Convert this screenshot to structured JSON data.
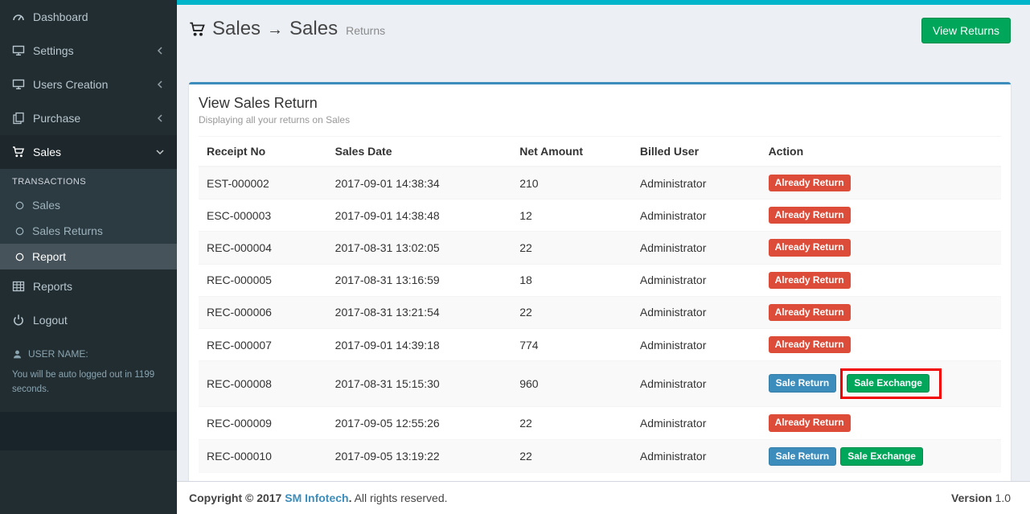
{
  "colors": {
    "topbar_accent": "#00b5c9",
    "primary_blue": "#3c8dbc",
    "success_green": "#00a65a",
    "danger_red": "#dd4b39",
    "sidebar_bg": "#222d32",
    "annotation_red": "#f20000"
  },
  "sidebar": {
    "items": [
      {
        "label": "Dashboard"
      },
      {
        "label": "Settings"
      },
      {
        "label": "Users Creation"
      },
      {
        "label": "Purchase"
      },
      {
        "label": "Sales"
      }
    ],
    "transactions_header": "TRANSACTIONS",
    "submenu": [
      {
        "label": "Sales"
      },
      {
        "label": "Sales Returns"
      },
      {
        "label": "Report"
      }
    ],
    "bottom_items": [
      {
        "label": "Reports"
      },
      {
        "label": "Logout"
      }
    ],
    "user_label": "USER NAME:",
    "auto_logout_text": "You will be auto logged out in 1199 seconds."
  },
  "header": {
    "title_primary": "Sales",
    "arrow": "→",
    "title_secondary": "Sales",
    "title_sub": "Returns",
    "view_returns_label": "View Returns"
  },
  "card": {
    "title": "View Sales Return",
    "subtitle": "Displaying all your returns on Sales"
  },
  "badges": {
    "already_return": "Already Return",
    "sale_return": "Sale Return",
    "sale_exchange": "Sale Exchange"
  },
  "table": {
    "columns": [
      "Receipt No",
      "Sales Date",
      "Net Amount",
      "Billed User",
      "Action"
    ],
    "rows": [
      {
        "receipt": "EST-000002",
        "date": "2017-09-01 14:38:34",
        "amount": "210",
        "user": "Administrator",
        "actions": [
          "already_return"
        ]
      },
      {
        "receipt": "ESC-000003",
        "date": "2017-09-01 14:38:48",
        "amount": "12",
        "user": "Administrator",
        "actions": [
          "already_return"
        ]
      },
      {
        "receipt": "REC-000004",
        "date": "2017-08-31 13:02:05",
        "amount": "22",
        "user": "Administrator",
        "actions": [
          "already_return"
        ]
      },
      {
        "receipt": "REC-000005",
        "date": "2017-08-31 13:16:59",
        "amount": "18",
        "user": "Administrator",
        "actions": [
          "already_return"
        ]
      },
      {
        "receipt": "REC-000006",
        "date": "2017-08-31 13:21:54",
        "amount": "22",
        "user": "Administrator",
        "actions": [
          "already_return"
        ]
      },
      {
        "receipt": "REC-000007",
        "date": "2017-09-01 14:39:18",
        "amount": "774",
        "user": "Administrator",
        "actions": [
          "already_return"
        ]
      },
      {
        "receipt": "REC-000008",
        "date": "2017-08-31 15:15:30",
        "amount": "960",
        "user": "Administrator",
        "actions": [
          "sale_return",
          "sale_exchange"
        ],
        "highlight": "sale_exchange"
      },
      {
        "receipt": "REC-000009",
        "date": "2017-09-05 12:55:26",
        "amount": "22",
        "user": "Administrator",
        "actions": [
          "already_return"
        ]
      },
      {
        "receipt": "REC-000010",
        "date": "2017-09-05 13:19:22",
        "amount": "22",
        "user": "Administrator",
        "actions": [
          "sale_return",
          "sale_exchange"
        ]
      }
    ]
  },
  "footer": {
    "copyright_prefix": "Copyright © 2017 ",
    "brand": "SM Infotech",
    "dot": ".",
    "rights": " All rights reserved.",
    "version_label": "Version",
    "version_value": "1.0"
  }
}
